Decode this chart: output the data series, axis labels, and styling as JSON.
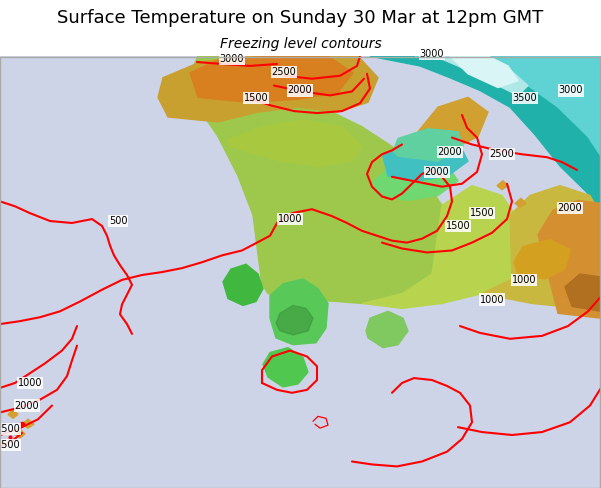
{
  "title": "Surface Temperature on Sunday 30 Mar at 12pm GMT",
  "subtitle": "Freezing level contours",
  "title_fontsize": 13,
  "subtitle_fontsize": 10,
  "fig_width": 6.01,
  "fig_height": 4.88,
  "dpi": 100,
  "background_color": "#ffffff",
  "map_bg_color": "#cdd4e8",
  "contour_color": "#ff0000",
  "contour_lw": 1.5
}
